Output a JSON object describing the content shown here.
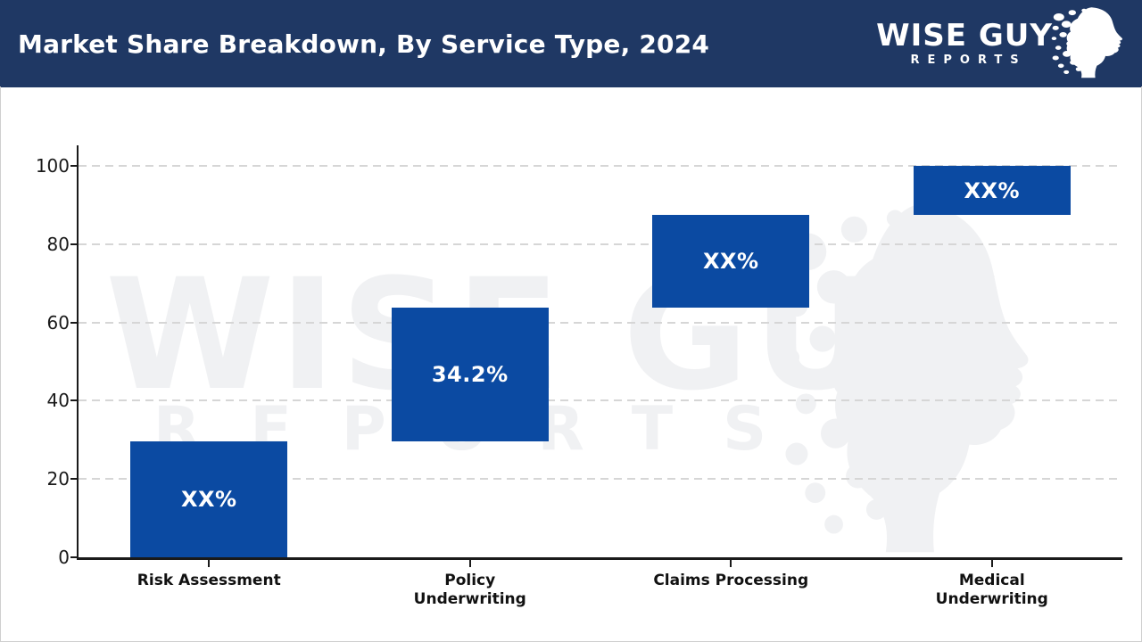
{
  "header": {
    "title": "Market Share Breakdown, By Service Type, 2024",
    "logo": {
      "wordmark": "WISE GUY",
      "subtext": "REPORTS"
    }
  },
  "watermark": {
    "wordmark": "WISE GUY",
    "subtext": "REPORTS"
  },
  "colors": {
    "header_bg": "#1F3864",
    "bar_fill": "#0B4AA2",
    "bar_label": "#FFFFFF",
    "grid": "#D6D6D6",
    "axis": "#1A1A1A",
    "watermark": "#F0F1F3",
    "page_border": "#CFCFCF"
  },
  "chart_data": {
    "type": "bar",
    "subtype": "floating-segment-waterfall",
    "title": "Market Share Breakdown, By Service Type, 2024",
    "xlabel": "",
    "ylabel": "",
    "ylim": [
      0,
      105
    ],
    "yticks": [
      0,
      20,
      40,
      60,
      80,
      100
    ],
    "grid": "horizontal-dashed",
    "legend": "none",
    "categories": [
      "Risk Assessment",
      "Policy Underwriting",
      "Claims Processing",
      "Medical Underwriting"
    ],
    "segments": [
      {
        "name": "Risk Assessment",
        "label_lines": [
          "Risk Assessment"
        ],
        "start": 0,
        "end": 29.5,
        "value_label": "XX%"
      },
      {
        "name": "Policy Underwriting",
        "label_lines": [
          "Policy",
          "Underwriting"
        ],
        "start": 29.5,
        "end": 63.7,
        "value_label": "34.2%"
      },
      {
        "name": "Claims Processing",
        "label_lines": [
          "Claims Processing"
        ],
        "start": 63.7,
        "end": 87.4,
        "value_label": "XX%"
      },
      {
        "name": "Medical Underwriting",
        "label_lines": [
          "Medical",
          "Underwriting"
        ],
        "start": 87.4,
        "end": 100,
        "value_label": "XX%"
      }
    ]
  }
}
